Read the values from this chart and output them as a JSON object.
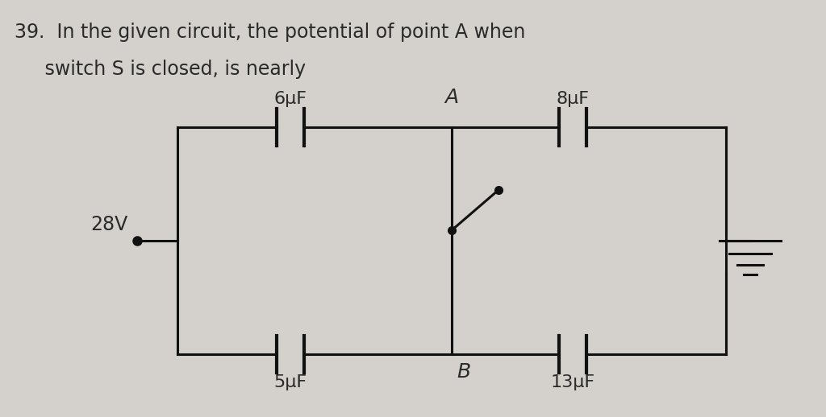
{
  "background_color": "#d4d0cb",
  "title_line1": "39.  In the given circuit, the potential of point A when",
  "title_line2": "     switch S is closed, is nearly",
  "title_fontsize": 17,
  "title_color": "#2a2a2a",
  "circuit_color": "#111111",
  "label_color": "#2a2a2a",
  "label_fontsize": 16,
  "voltage_label": "28V",
  "cap_top_left_label": "6μF",
  "cap_top_right_label": "8μF",
  "cap_bot_left_label": "5μF",
  "cap_bot_right_label": "13μF",
  "point_A_label": "A",
  "point_B_label": "B"
}
